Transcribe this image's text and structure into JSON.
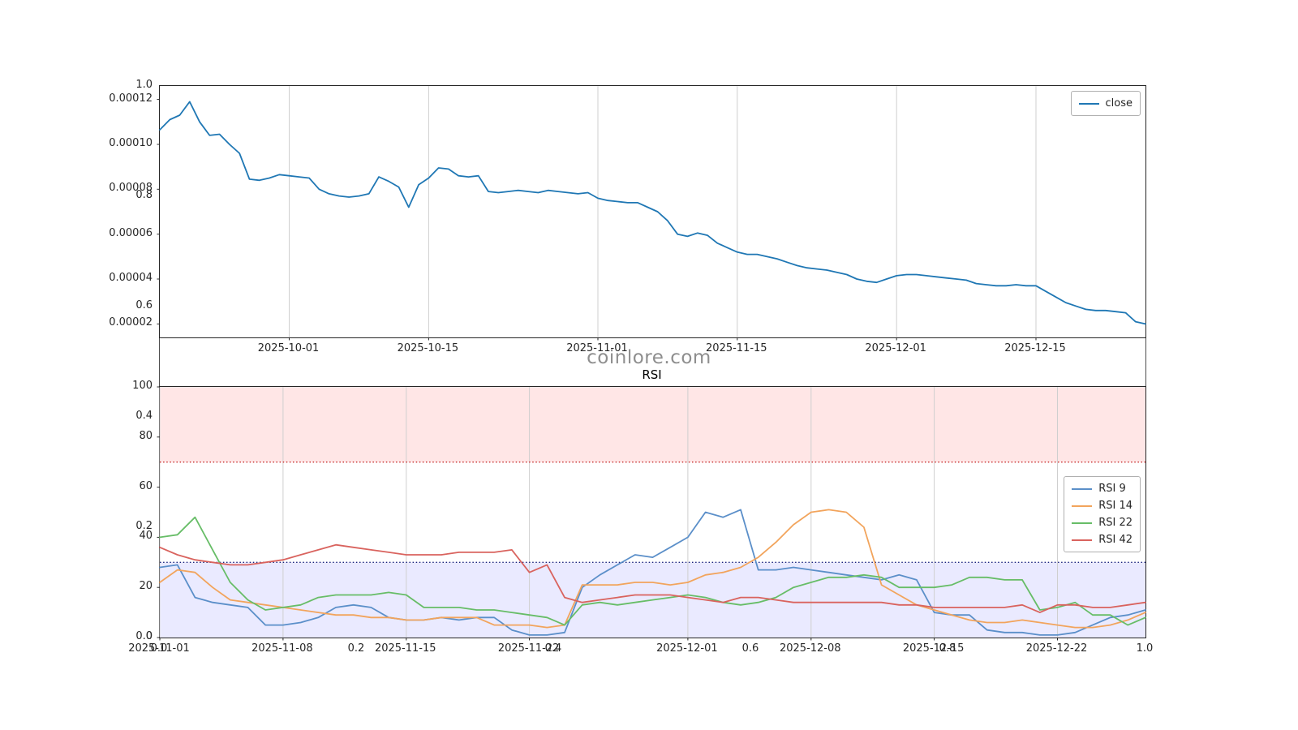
{
  "watermark": "coinlore.com",
  "overlay_axis": {
    "x_labels": [
      "0.0",
      "0.2",
      "0.4",
      "0.6",
      "0.8",
      "1.0"
    ],
    "y_labels": [
      "0.0",
      "0.2",
      "0.4",
      "0.6",
      "0.8",
      "1.0"
    ]
  },
  "chart_data": [
    {
      "type": "line",
      "title": "",
      "x_start": "2025-09-18",
      "x_end": "2025-12-26",
      "ylim": [
        1.4e-05,
        0.000126
      ],
      "grid": "vertical",
      "x_ticks": [
        "2025-10-01",
        "2025-10-15",
        "2025-11-01",
        "2025-11-15",
        "2025-12-01",
        "2025-12-15"
      ],
      "y_ticks": [
        {
          "value": 2e-05,
          "label": "0.00002"
        },
        {
          "value": 4e-05,
          "label": "0.00004"
        },
        {
          "value": 6e-05,
          "label": "0.00006"
        },
        {
          "value": 8e-05,
          "label": "0.00008"
        },
        {
          "value": 0.0001,
          "label": "0.00010"
        },
        {
          "value": 0.00012,
          "label": "0.00012"
        }
      ],
      "legend": [
        {
          "label": "close",
          "color": "#1f77b4"
        }
      ],
      "legend_position": "upper right",
      "series": [
        {
          "name": "close",
          "color": "#1f77b4",
          "start": "2025-09-18",
          "values": [
            0.0001065,
            0.000111,
            0.000113,
            0.000119,
            0.00011,
            0.000104,
            0.0001045,
            0.0001,
            9.6e-05,
            8.45e-05,
            8.4e-05,
            8.5e-05,
            8.65e-05,
            8.6e-05,
            8.55e-05,
            8.5e-05,
            8e-05,
            7.8e-05,
            7.7e-05,
            7.65e-05,
            7.7e-05,
            7.8e-05,
            8.55e-05,
            8.35e-05,
            8.1e-05,
            7.2e-05,
            8.2e-05,
            8.5e-05,
            8.95e-05,
            8.9e-05,
            8.6e-05,
            8.55e-05,
            8.6e-05,
            7.9e-05,
            7.85e-05,
            7.9e-05,
            7.95e-05,
            7.9e-05,
            7.85e-05,
            7.95e-05,
            7.9e-05,
            7.85e-05,
            7.8e-05,
            7.85e-05,
            7.6e-05,
            7.5e-05,
            7.45e-05,
            7.4e-05,
            7.4e-05,
            7.2e-05,
            7e-05,
            6.6e-05,
            6e-05,
            5.9e-05,
            6.05e-05,
            5.95e-05,
            5.6e-05,
            5.4e-05,
            5.2e-05,
            5.1e-05,
            5.1e-05,
            5e-05,
            4.9e-05,
            4.75e-05,
            4.6e-05,
            4.5e-05,
            4.45e-05,
            4.4e-05,
            4.3e-05,
            4.2e-05,
            4e-05,
            3.9e-05,
            3.85e-05,
            4e-05,
            4.15e-05,
            4.2e-05,
            4.2e-05,
            4.15e-05,
            4.1e-05,
            4.05e-05,
            4e-05,
            3.95e-05,
            3.8e-05,
            3.75e-05,
            3.7e-05,
            3.7e-05,
            3.75e-05,
            3.7e-05,
            3.7e-05,
            3.45e-05,
            3.2e-05,
            2.95e-05,
            2.8e-05,
            2.65e-05,
            2.6e-05,
            2.6e-05,
            2.55e-05,
            2.5e-05,
            2.1e-05,
            2e-05
          ]
        }
      ]
    },
    {
      "type": "line",
      "title": "RSI",
      "x_start": "2025-11-01",
      "x_end": "2025-12-27",
      "ylim": [
        0,
        100
      ],
      "grid": "vertical",
      "x_ticks": [
        "2025-11-01",
        "2025-11-08",
        "2025-11-15",
        "2025-11-22",
        "2025-12-01",
        "2025-12-08",
        "2025-12-15",
        "2025-12-22"
      ],
      "y_ticks": [
        {
          "value": 0,
          "label": "0"
        },
        {
          "value": 20,
          "label": "20"
        },
        {
          "value": 40,
          "label": "40"
        },
        {
          "value": 60,
          "label": "60"
        },
        {
          "value": 80,
          "label": "80"
        },
        {
          "value": 100,
          "label": "100"
        }
      ],
      "bands": [
        {
          "name": "overbought-band",
          "from": 70,
          "to": 100,
          "color": "rgba(255,60,60,0.13)"
        },
        {
          "name": "oversold-band",
          "from": 0,
          "to": 30,
          "color": "rgba(90,90,255,0.13)"
        }
      ],
      "hlines": [
        {
          "value": 70,
          "color": "#c62828"
        },
        {
          "value": 30,
          "color": "#1a237e"
        }
      ],
      "legend": [
        {
          "label": "RSI 9",
          "color": "#5b8fc9"
        },
        {
          "label": "RSI 14",
          "color": "#f2a45c"
        },
        {
          "label": "RSI 22",
          "color": "#67bd67"
        },
        {
          "label": "RSI 42",
          "color": "#d9635e"
        }
      ],
      "legend_position": "right",
      "series": [
        {
          "name": "RSI 9",
          "color": "#5b8fc9",
          "start": "2025-11-01",
          "values": [
            28,
            29,
            16,
            14,
            13,
            12,
            5,
            5,
            6,
            8,
            12,
            13,
            12,
            8,
            7,
            7,
            8,
            7,
            8,
            8,
            3,
            1,
            1,
            2,
            20,
            25,
            29,
            33,
            32,
            36,
            40,
            50,
            48,
            51,
            27,
            27,
            28,
            27,
            26,
            25,
            24,
            23,
            25,
            23,
            10,
            9,
            9,
            3,
            2,
            2,
            1,
            1,
            2,
            5,
            8,
            9,
            11
          ]
        },
        {
          "name": "RSI 14",
          "color": "#f2a45c",
          "start": "2025-11-01",
          "values": [
            22,
            27,
            26,
            20,
            15,
            14,
            13,
            12,
            11,
            10,
            9,
            9,
            8,
            8,
            7,
            7,
            8,
            8,
            8,
            5,
            5,
            5,
            4,
            5,
            21,
            21,
            21,
            22,
            22,
            21,
            22,
            25,
            26,
            28,
            32,
            38,
            45,
            50,
            51,
            50,
            44,
            21,
            17,
            13,
            11,
            9,
            7,
            6,
            6,
            7,
            6,
            5,
            4,
            4,
            5,
            7,
            10
          ]
        },
        {
          "name": "RSI 22",
          "color": "#67bd67",
          "start": "2025-11-01",
          "values": [
            40,
            41,
            48,
            35,
            22,
            15,
            11,
            12,
            13,
            16,
            17,
            17,
            17,
            18,
            17,
            12,
            12,
            12,
            11,
            11,
            10,
            9,
            8,
            5,
            13,
            14,
            13,
            14,
            15,
            16,
            17,
            16,
            14,
            13,
            14,
            16,
            20,
            22,
            24,
            24,
            25,
            24,
            20,
            20,
            20,
            21,
            24,
            24,
            23,
            23,
            11,
            12,
            14,
            9,
            9,
            5,
            8
          ]
        },
        {
          "name": "RSI 42",
          "color": "#d9635e",
          "start": "2025-11-01",
          "values": [
            36,
            33,
            31,
            30,
            29,
            29,
            30,
            31,
            33,
            35,
            37,
            36,
            35,
            34,
            33,
            33,
            33,
            34,
            34,
            34,
            35,
            26,
            29,
            16,
            14,
            15,
            16,
            17,
            17,
            17,
            16,
            15,
            14,
            16,
            16,
            15,
            14,
            14,
            14,
            14,
            14,
            14,
            13,
            13,
            12,
            12,
            12,
            12,
            12,
            13,
            10,
            13,
            13,
            12,
            12,
            13,
            14
          ]
        }
      ]
    }
  ]
}
